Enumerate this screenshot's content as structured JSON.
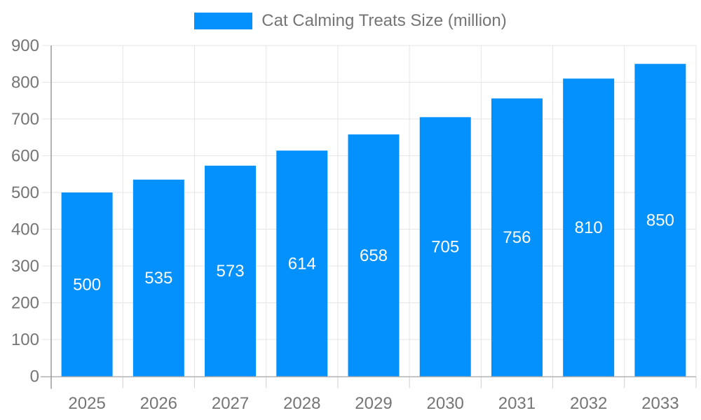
{
  "chart_data": {
    "type": "bar",
    "title": "Cat Calming Treats Size (million)",
    "categories": [
      "2025",
      "2026",
      "2027",
      "2028",
      "2029",
      "2030",
      "2031",
      "2032",
      "2033"
    ],
    "values": [
      500,
      535,
      573,
      614,
      658,
      705,
      756,
      810,
      850
    ],
    "xlabel": "",
    "ylabel": "",
    "ylim": [
      0,
      900
    ],
    "ytick_step": 100,
    "grid": true,
    "legend_position": "top-center",
    "bar_label_position": "inside-middle",
    "colors": {
      "bar": "#0591fc",
      "bar_label_text": "#ffffff",
      "axis_text": "#757575",
      "gridline": "#e6e6e6",
      "boundary_tick": "#cfcfcf",
      "y_axis_line": "#9a9a9a",
      "x_axis_line": "#b3b3b3",
      "background": "#ffffff"
    }
  }
}
